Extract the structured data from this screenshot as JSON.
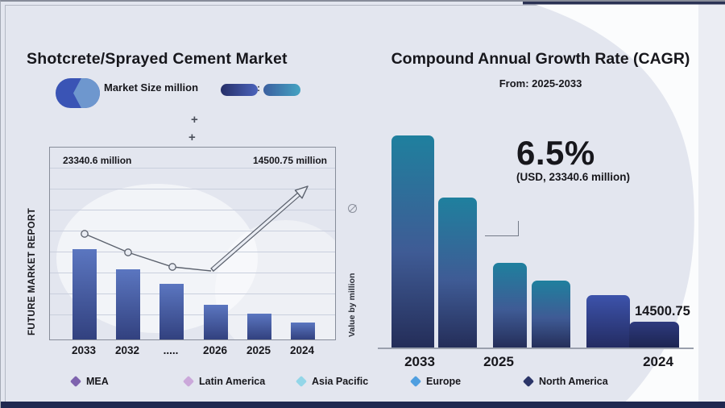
{
  "colors": {
    "background": "#e3e6ef",
    "bottom_band": "#1f2850",
    "left_bar_top": "#5b76c0",
    "left_bar_bottom": "#32417f",
    "right_bar_teal_top": "#1f809e",
    "right_bar_navy_bottom": "#242d58",
    "bar_2024_top": "#3d53ab",
    "bar_2024_bottom": "#1c2450",
    "pill_dark_blue": "#3a54b5",
    "pill_light_blue": "#6e97ce"
  },
  "left_panel": {
    "title": "Shotcrete/Sprayed Cement Market",
    "legend_label": "Market Size million",
    "separator": ":",
    "plus_top": "+",
    "plus_bottom": "+",
    "chart": {
      "annotation_left": "23340.6 million",
      "annotation_right": "14500.75 million",
      "side_label_left": "FUTURE MARKET REPORT",
      "side_label_right": "Value by million",
      "x_labels": [
        "2033",
        "2032",
        ".....",
        "2026",
        "2025",
        "2024"
      ]
    }
  },
  "right_panel": {
    "title": "Compound Annual Growth Rate (CAGR)",
    "subtitle": "From: 2025-2033",
    "cagr_value": "6.5%",
    "cagr_note": "(USD, 23340.6 million)",
    "bar_value_label": "14500.75",
    "x_labels": [
      "2033",
      "2025",
      "2024"
    ]
  },
  "legend": {
    "items": [
      {
        "label": "MEA",
        "color": "#7e63ae"
      },
      {
        "label": "Latin America",
        "color": "#cba8da"
      },
      {
        "label": "Asia Pacific",
        "color": "#93d6e8"
      },
      {
        "label": "Europe",
        "color": "#4f9fe0"
      },
      {
        "label": "North America",
        "color": "#2b3568"
      }
    ]
  },
  "chart_data": [
    {
      "type": "bar",
      "title": "Shotcrete/Sprayed Cement Market - Market Size million",
      "categories": [
        "2033",
        "2032",
        ".....",
        "2026",
        "2025",
        "2024"
      ],
      "values_million": [
        23340.6,
        null,
        null,
        null,
        null,
        14500.75
      ],
      "bar_heights_rel": [
        1.0,
        0.78,
        0.62,
        0.38,
        0.29,
        0.19
      ],
      "ylabel": "Value by million",
      "annotations": [
        "23340.6 million at 2033",
        "14500.75 million at 2024"
      ],
      "overlay": "declining marker line over first four categories, then outlined arrow rising to top right",
      "grid": "horizontal"
    },
    {
      "type": "bar",
      "title": "Compound Annual Growth Rate (CAGR) From: 2025-2033",
      "categories": [
        "2033",
        "2025",
        "2024"
      ],
      "series": [
        {
          "name": "primary",
          "bar_heights_rel": [
            1.0,
            0.4,
            0.25
          ]
        },
        {
          "name": "secondary",
          "bar_heights_rel": [
            0.71,
            0.32,
            0.125
          ]
        }
      ],
      "cagr_percent": 6.5,
      "value_usd_million": 23340.6,
      "label_2024": "14500.75",
      "legend_position": "bottom"
    }
  ]
}
